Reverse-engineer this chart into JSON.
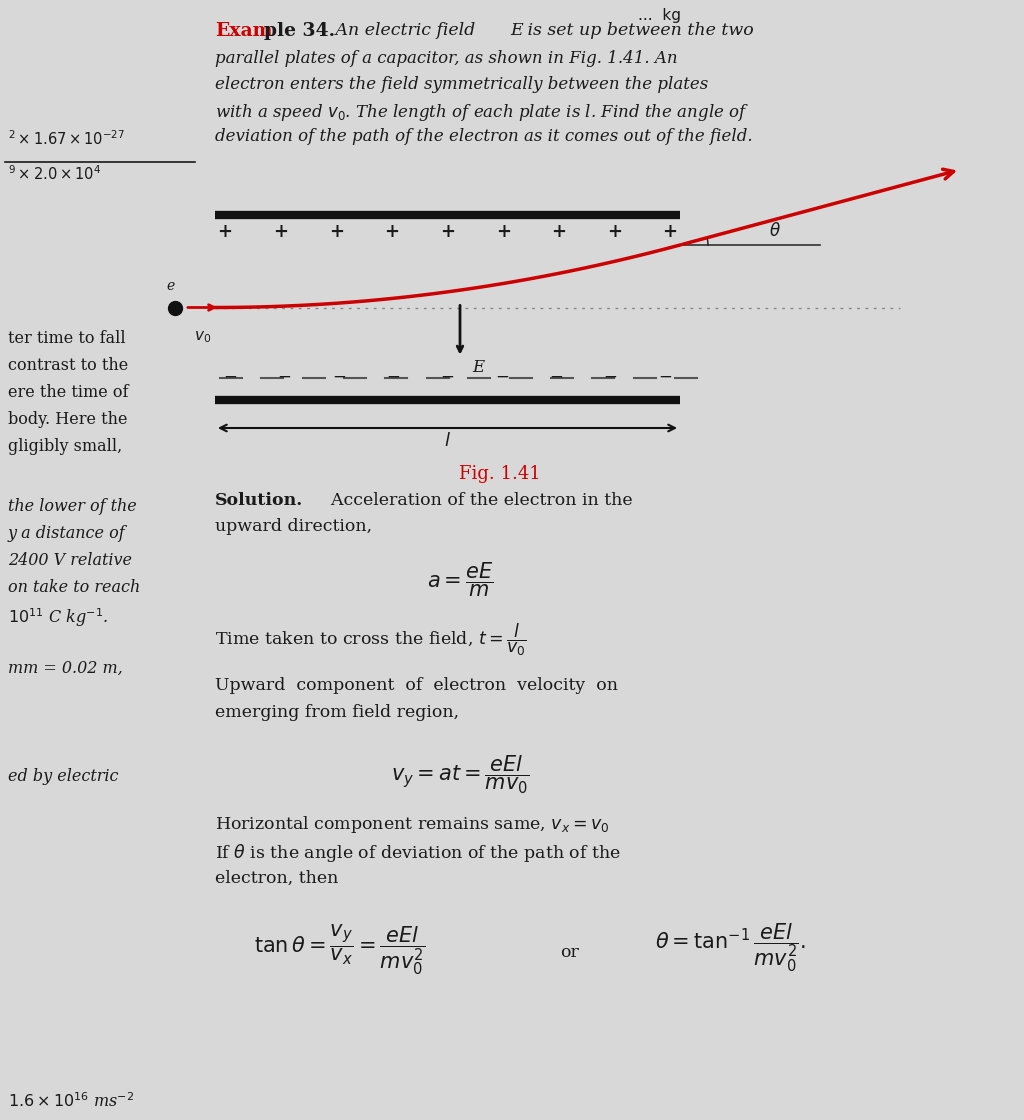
{
  "bg_color": "#d8d8d8",
  "title_color": "#cc0000",
  "text_color": "#1a1a1a",
  "red_color": "#cc0000",
  "plate_color": "#111111",
  "heading": {
    "example_red": "Exam",
    "example_rest": "ple 34.",
    "text_italic": " An electric field E is set up between the two",
    "para": [
      "parallel plates of a capacitor, as shown in Fig. 1.41. An",
      "electron enters the field symmetrically between the plates",
      "with a speed $v_0$. The length of each plate is l. Find the angle of",
      "deviation of the path of the electron as it comes out of the field."
    ]
  },
  "left_margin": {
    "frac_num": "$^2\\times 1.67\\times 10^{-27}$",
    "frac_den": "$^9\\times 2.0\\times 10^{4}$",
    "lines_normal": [
      "ter time to fall",
      "contrast to the",
      "ere the time of",
      "body. Here the",
      "gligibly small,"
    ],
    "lines_italic": [
      "the lower of the",
      "y a distance of",
      "2400 V relative",
      "on take to reach",
      "$10^{11}$ C kg$^{-1}$.",
      "",
      "mm = 0.02 m,",
      "",
      "",
      "ed by electric",
      "",
      "",
      "$1.6\\times 10^{16}$ ms$^{-2}$"
    ]
  },
  "solution_lines": [
    "upward direction,",
    "Time taken to cross the field,",
    "Upward  component  of  electron  velocity  on",
    "emerging from field region,",
    "Horizontal component remains same,",
    "If $\\theta$ is the angle of deviation of the path of the",
    "electron, then"
  ]
}
